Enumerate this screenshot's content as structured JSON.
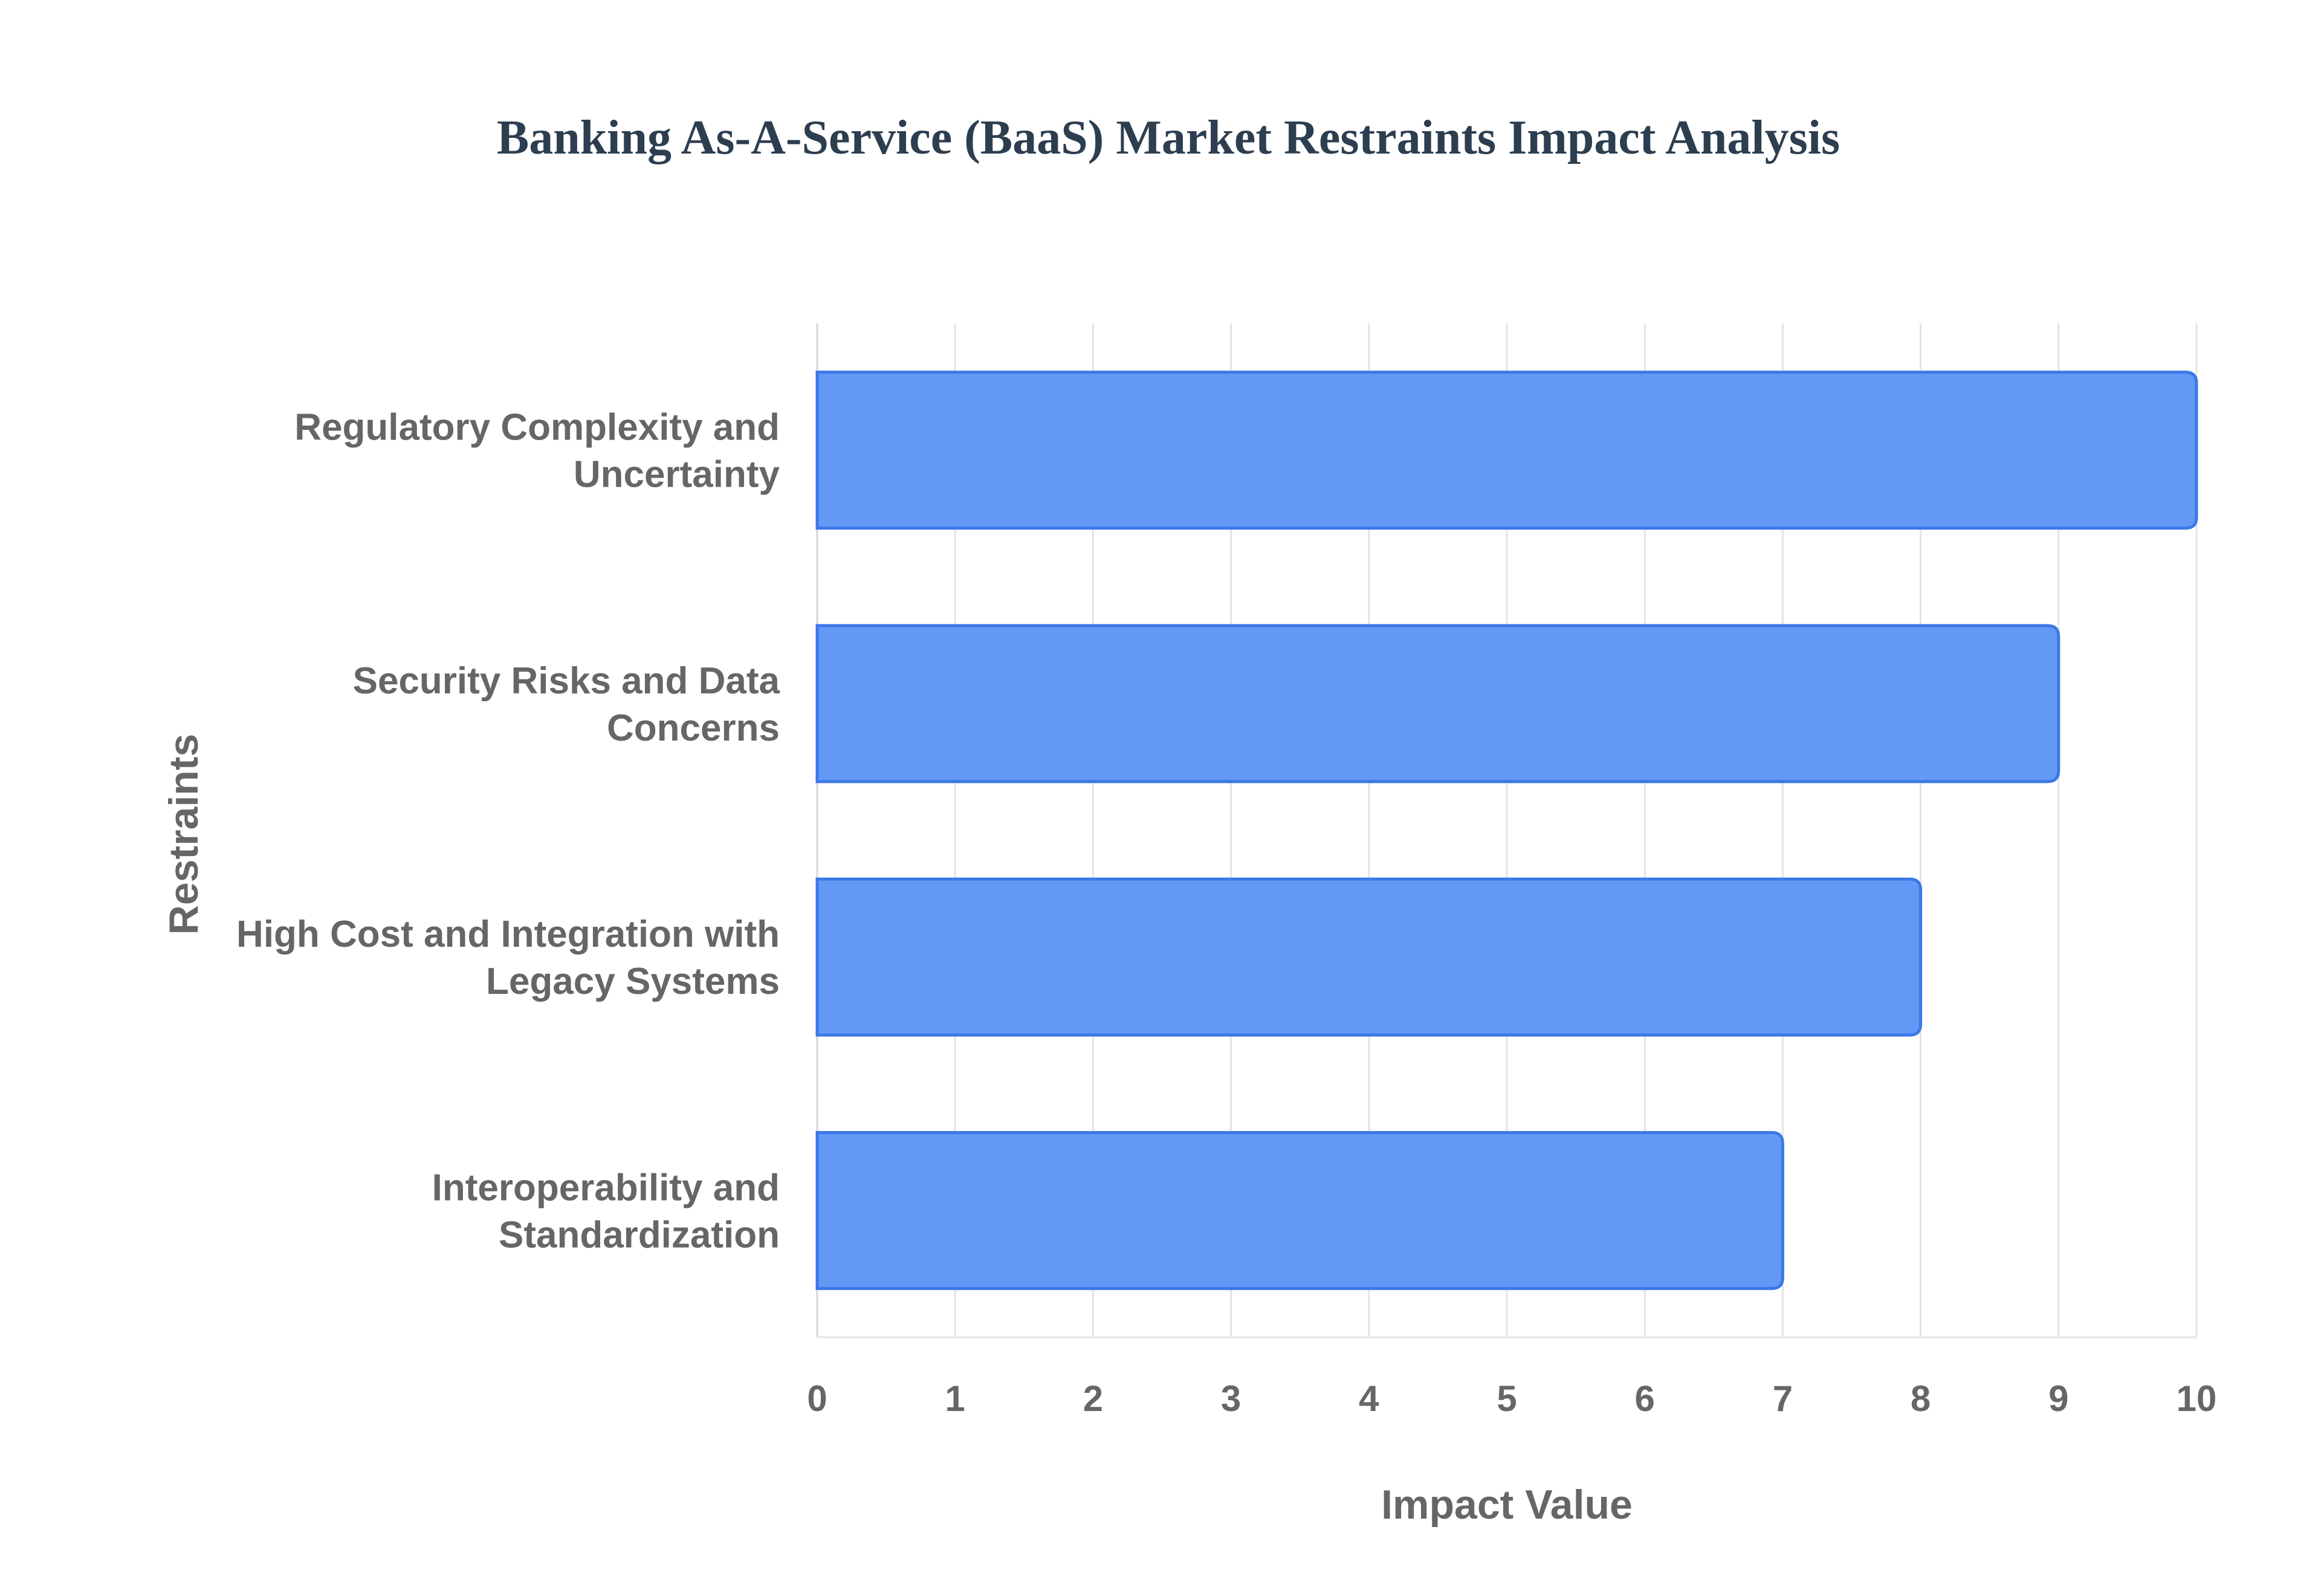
{
  "chart_data": {
    "type": "bar",
    "orientation": "horizontal",
    "title": "Banking As-A-Service (BaaS) Market Restraints Impact Analysis",
    "xlabel": "Impact Value",
    "ylabel": "Restraints",
    "categories": [
      [
        "Regulatory Complexity and",
        "Uncertainty"
      ],
      [
        "Security Risks and Data",
        "Concerns"
      ],
      [
        "High Cost and Integration with",
        "Legacy Systems"
      ],
      [
        "Interoperability and",
        "Standardization"
      ]
    ],
    "values": [
      10,
      9,
      8,
      7
    ],
    "xlim": [
      0,
      10
    ],
    "xticks": [
      "0",
      "1",
      "2",
      "3",
      "4",
      "5",
      "6",
      "7",
      "8",
      "9",
      "10"
    ],
    "grid": true,
    "legend": "none",
    "colors": {
      "bar_fill": "#6398f5",
      "bar_stroke": "#3b78e7",
      "title": "#2c3e50",
      "text": "#666666",
      "grid": "#e4e4e4"
    }
  }
}
